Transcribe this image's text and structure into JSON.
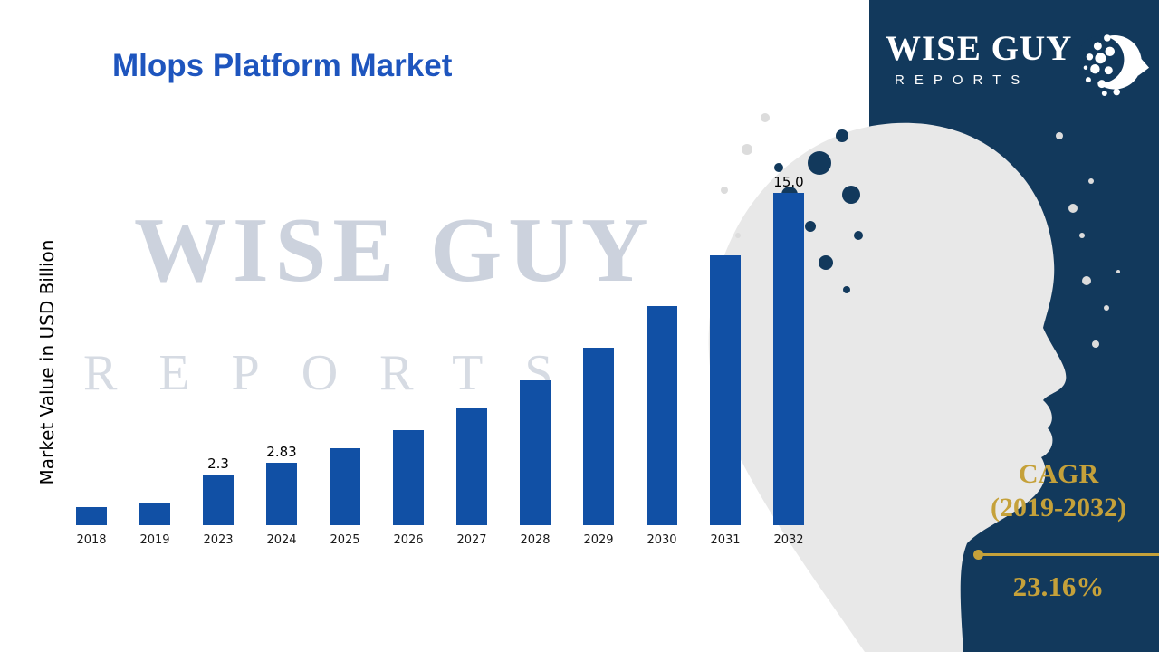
{
  "title": "Mlops Platform Market",
  "y_axis_label": "Market Value in USD Billion",
  "watermark": {
    "line1": "WISE GUY",
    "line2": "REPORTS"
  },
  "logo": {
    "line1": "WISE GUY",
    "line2": "REPORTS"
  },
  "cagr": {
    "label": "CAGR",
    "range": "(2019-2032)",
    "value": "23.16%"
  },
  "colors": {
    "bar": "#1150a5",
    "title_blue": "#1e55be",
    "panel_navy": "#12395c",
    "accent_gold": "#c5a13a",
    "head_gray": "#e8e8e8",
    "watermark_gray": "#ccd2dd"
  },
  "chart_data": {
    "type": "bar",
    "title": "Mlops Platform Market",
    "xlabel": "",
    "ylabel": "Market Value in USD Billion",
    "categories": [
      "2018",
      "2019",
      "2023",
      "2024",
      "2025",
      "2026",
      "2027",
      "2028",
      "2029",
      "2030",
      "2031",
      "2032"
    ],
    "values": [
      0.81,
      1.0,
      2.3,
      2.83,
      3.49,
      4.3,
      5.29,
      6.52,
      8.03,
      9.89,
      12.18,
      15.0
    ],
    "bar_labels": [
      "",
      "",
      "2.3",
      "2.83",
      "",
      "",
      "",
      "",
      "",
      "",
      "",
      "15.0"
    ],
    "ylim": [
      0,
      16
    ],
    "grid": false,
    "legend": "none",
    "bar_color": "#1150a5"
  }
}
